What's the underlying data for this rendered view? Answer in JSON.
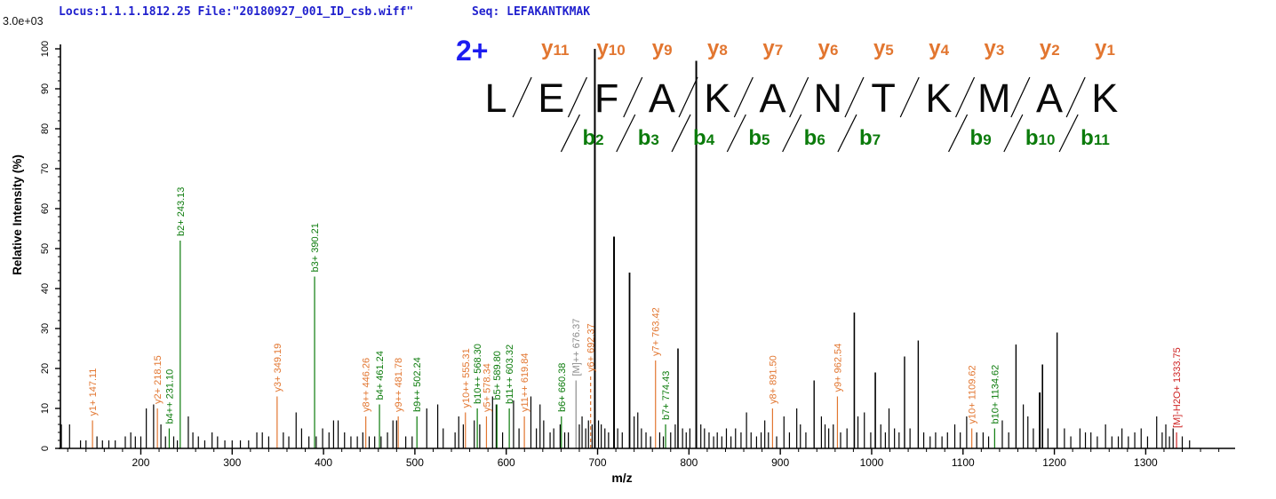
{
  "header": {
    "locus_file": "Locus:1.1.1.1812.25 File:\"20180927_001_ID_csb.wiff\"",
    "seq_label": "Seq: LEFAKANTKMAK",
    "intensity_scale": "3.0e+03"
  },
  "annotation": {
    "charge_state": "2+",
    "sequence": [
      "L",
      "E",
      "F",
      "A",
      "K",
      "A",
      "N",
      "T",
      "K",
      "M",
      "A",
      "K"
    ],
    "y_ion_labels": [
      "y11",
      "y10",
      "y9",
      "y8",
      "y7",
      "y6",
      "y5",
      "y4",
      "y3",
      "y2",
      "y1"
    ],
    "b_ion_labels": [
      "b2",
      "b3",
      "b4",
      "b5",
      "b6",
      "b7",
      "b9",
      "b10",
      "b11"
    ]
  },
  "axes": {
    "x_label": "m/z",
    "y_label": "Relative  Intensity  (%)",
    "x_major_ticks": [
      200,
      300,
      400,
      500,
      600,
      700,
      800,
      900,
      1000,
      1100,
      1200,
      1300
    ],
    "x_minor_step": 20,
    "y_major_ticks": [
      0,
      10,
      20,
      30,
      40,
      50,
      60,
      70,
      80,
      90,
      100
    ],
    "y_minor_step": 2,
    "x_range": [
      112,
      1393
    ],
    "y_range": [
      0,
      100
    ]
  },
  "colors": {
    "y_ion": "#E27630",
    "b_ion": "#0B7B0B",
    "precursor": "#8C8C8C",
    "neutral_loss": "#CE2222",
    "peak": "#000000",
    "header_text": "#2121CE",
    "charge": "#1C1CF0",
    "axis": "#000000"
  },
  "chart_data": {
    "type": "bar",
    "subtype": "msms-stick-spectrum",
    "labeled_peaks": [
      {
        "label": "y1+ 147.11",
        "mz": 147.11,
        "intensity": 7,
        "series": "y"
      },
      {
        "label": "y2+ 218.15",
        "mz": 218.15,
        "intensity": 10,
        "series": "y"
      },
      {
        "label": "b4++ 231.10",
        "mz": 231.1,
        "intensity": 5,
        "series": "b"
      },
      {
        "label": "b2+ 243.13",
        "mz": 243.13,
        "intensity": 52,
        "series": "b"
      },
      {
        "label": "y3+ 349.19",
        "mz": 349.19,
        "intensity": 13,
        "series": "y"
      },
      {
        "label": "b3+ 390.21",
        "mz": 390.21,
        "intensity": 43,
        "series": "b"
      },
      {
        "label": "y8++ 446.26",
        "mz": 446.26,
        "intensity": 8,
        "series": "y"
      },
      {
        "label": "b4+ 461.24",
        "mz": 461.24,
        "intensity": 11,
        "series": "b"
      },
      {
        "label": "y9++ 481.78",
        "mz": 481.78,
        "intensity": 8,
        "series": "y"
      },
      {
        "label": "b9++ 502.24",
        "mz": 502.24,
        "intensity": 8,
        "series": "b"
      },
      {
        "label": "y10++ 555.31",
        "mz": 555.31,
        "intensity": 9,
        "series": "y"
      },
      {
        "label": "b10++ 568.30",
        "mz": 568.3,
        "intensity": 10,
        "series": "b"
      },
      {
        "label": "y5+ 578.34",
        "mz": 578.34,
        "intensity": 8,
        "series": "y"
      },
      {
        "label": "b5+ 589.80",
        "mz": 589.8,
        "intensity": 11,
        "series": "b"
      },
      {
        "label": "b11++ 603.32",
        "mz": 603.32,
        "intensity": 10,
        "series": "b"
      },
      {
        "label": "y11++ 619.84",
        "mz": 619.84,
        "intensity": 8,
        "series": "y"
      },
      {
        "label": "b6+ 660.38",
        "mz": 660.38,
        "intensity": 8,
        "series": "b"
      },
      {
        "label": "[M]++ 676.37",
        "mz": 676.37,
        "intensity": 17,
        "series": "precursor"
      },
      {
        "label": "y6+ 692.37",
        "mz": 692.37,
        "intensity": 18,
        "series": "y",
        "line": "dashed"
      },
      {
        "label": "y7+ 763.42",
        "mz": 763.42,
        "intensity": 22,
        "series": "y"
      },
      {
        "label": "b7+ 774.43",
        "mz": 774.43,
        "intensity": 6,
        "series": "b"
      },
      {
        "label": "y8+ 891.50",
        "mz": 891.5,
        "intensity": 10,
        "series": "y"
      },
      {
        "label": "y9+ 962.54",
        "mz": 962.54,
        "intensity": 13,
        "series": "y"
      },
      {
        "label": "y10+ 1109.62",
        "mz": 1109.62,
        "intensity": 5,
        "series": "y"
      },
      {
        "label": "b10+ 1134.62",
        "mz": 1134.62,
        "intensity": 5,
        "series": "b"
      },
      {
        "label": "[M]-H2O+ 1333.75",
        "mz": 1333.75,
        "intensity": 4,
        "series": "neutral_loss"
      }
    ],
    "background_peaks": [
      [
        113,
        6
      ],
      [
        122,
        6
      ],
      [
        134,
        2
      ],
      [
        140,
        2
      ],
      [
        152,
        3
      ],
      [
        158,
        2
      ],
      [
        165,
        2
      ],
      [
        172,
        2
      ],
      [
        183,
        3
      ],
      [
        189,
        4
      ],
      [
        194,
        3
      ],
      [
        200,
        3
      ],
      [
        206,
        10
      ],
      [
        214,
        11
      ],
      [
        222,
        6
      ],
      [
        227,
        3
      ],
      [
        236,
        3
      ],
      [
        240,
        2
      ],
      [
        252,
        8
      ],
      [
        257,
        4
      ],
      [
        263,
        3
      ],
      [
        270,
        2
      ],
      [
        278,
        4
      ],
      [
        284,
        3
      ],
      [
        292,
        2
      ],
      [
        300,
        2
      ],
      [
        309,
        2
      ],
      [
        318,
        2
      ],
      [
        327,
        4
      ],
      [
        333,
        4
      ],
      [
        340,
        3
      ],
      [
        356,
        4
      ],
      [
        362,
        3
      ],
      [
        370,
        9
      ],
      [
        376,
        5
      ],
      [
        384,
        3
      ],
      [
        392,
        3
      ],
      [
        399,
        5
      ],
      [
        406,
        4
      ],
      [
        411,
        7
      ],
      [
        416,
        7
      ],
      [
        423,
        4
      ],
      [
        430,
        3
      ],
      [
        437,
        3
      ],
      [
        443,
        4
      ],
      [
        450,
        3
      ],
      [
        456,
        3
      ],
      [
        463,
        3
      ],
      [
        470,
        4
      ],
      [
        476,
        7
      ],
      [
        480,
        7
      ],
      [
        490,
        3
      ],
      [
        497,
        3
      ],
      [
        513,
        10
      ],
      [
        525,
        11
      ],
      [
        531,
        5
      ],
      [
        544,
        4
      ],
      [
        548,
        8
      ],
      [
        553,
        6
      ],
      [
        565,
        7
      ],
      [
        571,
        6
      ],
      [
        585,
        13
      ],
      [
        589,
        11
      ],
      [
        596,
        4
      ],
      [
        608,
        12
      ],
      [
        614,
        5
      ],
      [
        627,
        13
      ],
      [
        633,
        5
      ],
      [
        637,
        11
      ],
      [
        641,
        7
      ],
      [
        648,
        4
      ],
      [
        652,
        5
      ],
      [
        659,
        6
      ],
      [
        664,
        4
      ],
      [
        668,
        4
      ],
      [
        680,
        6
      ],
      [
        683,
        8
      ],
      [
        687,
        5
      ],
      [
        690,
        7
      ],
      [
        694,
        6
      ],
      [
        697,
        100,
        2
      ],
      [
        701,
        7
      ],
      [
        704,
        6
      ],
      [
        708,
        5
      ],
      [
        712,
        4
      ],
      [
        718,
        53,
        2
      ],
      [
        722,
        5
      ],
      [
        727,
        4
      ],
      [
        735,
        44,
        1.8
      ],
      [
        740,
        8
      ],
      [
        744,
        9
      ],
      [
        748,
        5
      ],
      [
        753,
        4
      ],
      [
        758,
        3
      ],
      [
        768,
        4
      ],
      [
        772,
        3
      ],
      [
        780,
        4
      ],
      [
        785,
        6
      ],
      [
        788,
        25,
        1.6
      ],
      [
        793,
        5
      ],
      [
        797,
        4
      ],
      [
        801,
        5
      ],
      [
        808,
        97,
        2
      ],
      [
        813,
        6
      ],
      [
        817,
        5
      ],
      [
        822,
        4
      ],
      [
        827,
        3
      ],
      [
        831,
        4
      ],
      [
        836,
        3
      ],
      [
        841,
        5
      ],
      [
        846,
        3
      ],
      [
        851,
        5
      ],
      [
        857,
        4
      ],
      [
        863,
        9
      ],
      [
        868,
        4
      ],
      [
        874,
        3
      ],
      [
        879,
        4
      ],
      [
        883,
        7
      ],
      [
        887,
        4
      ],
      [
        896,
        3
      ],
      [
        904,
        8
      ],
      [
        910,
        4
      ],
      [
        918,
        10
      ],
      [
        922,
        6
      ],
      [
        928,
        4
      ],
      [
        937,
        17,
        1.4
      ],
      [
        945,
        8
      ],
      [
        949,
        6
      ],
      [
        953,
        5
      ],
      [
        958,
        6
      ],
      [
        966,
        4
      ],
      [
        973,
        5
      ],
      [
        981,
        34,
        1.6
      ],
      [
        985,
        8
      ],
      [
        992,
        9
      ],
      [
        999,
        4
      ],
      [
        1004,
        19,
        1.6
      ],
      [
        1010,
        6
      ],
      [
        1015,
        4
      ],
      [
        1019,
        10
      ],
      [
        1025,
        5
      ],
      [
        1030,
        4
      ],
      [
        1036,
        23,
        1.4
      ],
      [
        1042,
        5
      ],
      [
        1051,
        27,
        1.4
      ],
      [
        1057,
        4
      ],
      [
        1064,
        3
      ],
      [
        1070,
        4
      ],
      [
        1077,
        3
      ],
      [
        1083,
        4
      ],
      [
        1091,
        6
      ],
      [
        1097,
        4
      ],
      [
        1104,
        8
      ],
      [
        1115,
        4
      ],
      [
        1122,
        4
      ],
      [
        1128,
        3
      ],
      [
        1143,
        7
      ],
      [
        1150,
        4
      ],
      [
        1158,
        26,
        1.4
      ],
      [
        1166,
        11
      ],
      [
        1171,
        8
      ],
      [
        1177,
        5
      ],
      [
        1184,
        14,
        2
      ],
      [
        1187,
        21,
        1.6
      ],
      [
        1193,
        5
      ],
      [
        1203,
        29,
        1.4
      ],
      [
        1211,
        5
      ],
      [
        1218,
        3
      ],
      [
        1228,
        5
      ],
      [
        1234,
        4
      ],
      [
        1240,
        4
      ],
      [
        1247,
        3
      ],
      [
        1256,
        6
      ],
      [
        1263,
        3
      ],
      [
        1270,
        3
      ],
      [
        1274,
        5
      ],
      [
        1281,
        3
      ],
      [
        1288,
        4
      ],
      [
        1295,
        5
      ],
      [
        1302,
        3
      ],
      [
        1312,
        8
      ],
      [
        1318,
        4
      ],
      [
        1322,
        6
      ],
      [
        1326,
        3
      ],
      [
        1330,
        5
      ],
      [
        1340,
        3
      ],
      [
        1348,
        2
      ]
    ]
  }
}
